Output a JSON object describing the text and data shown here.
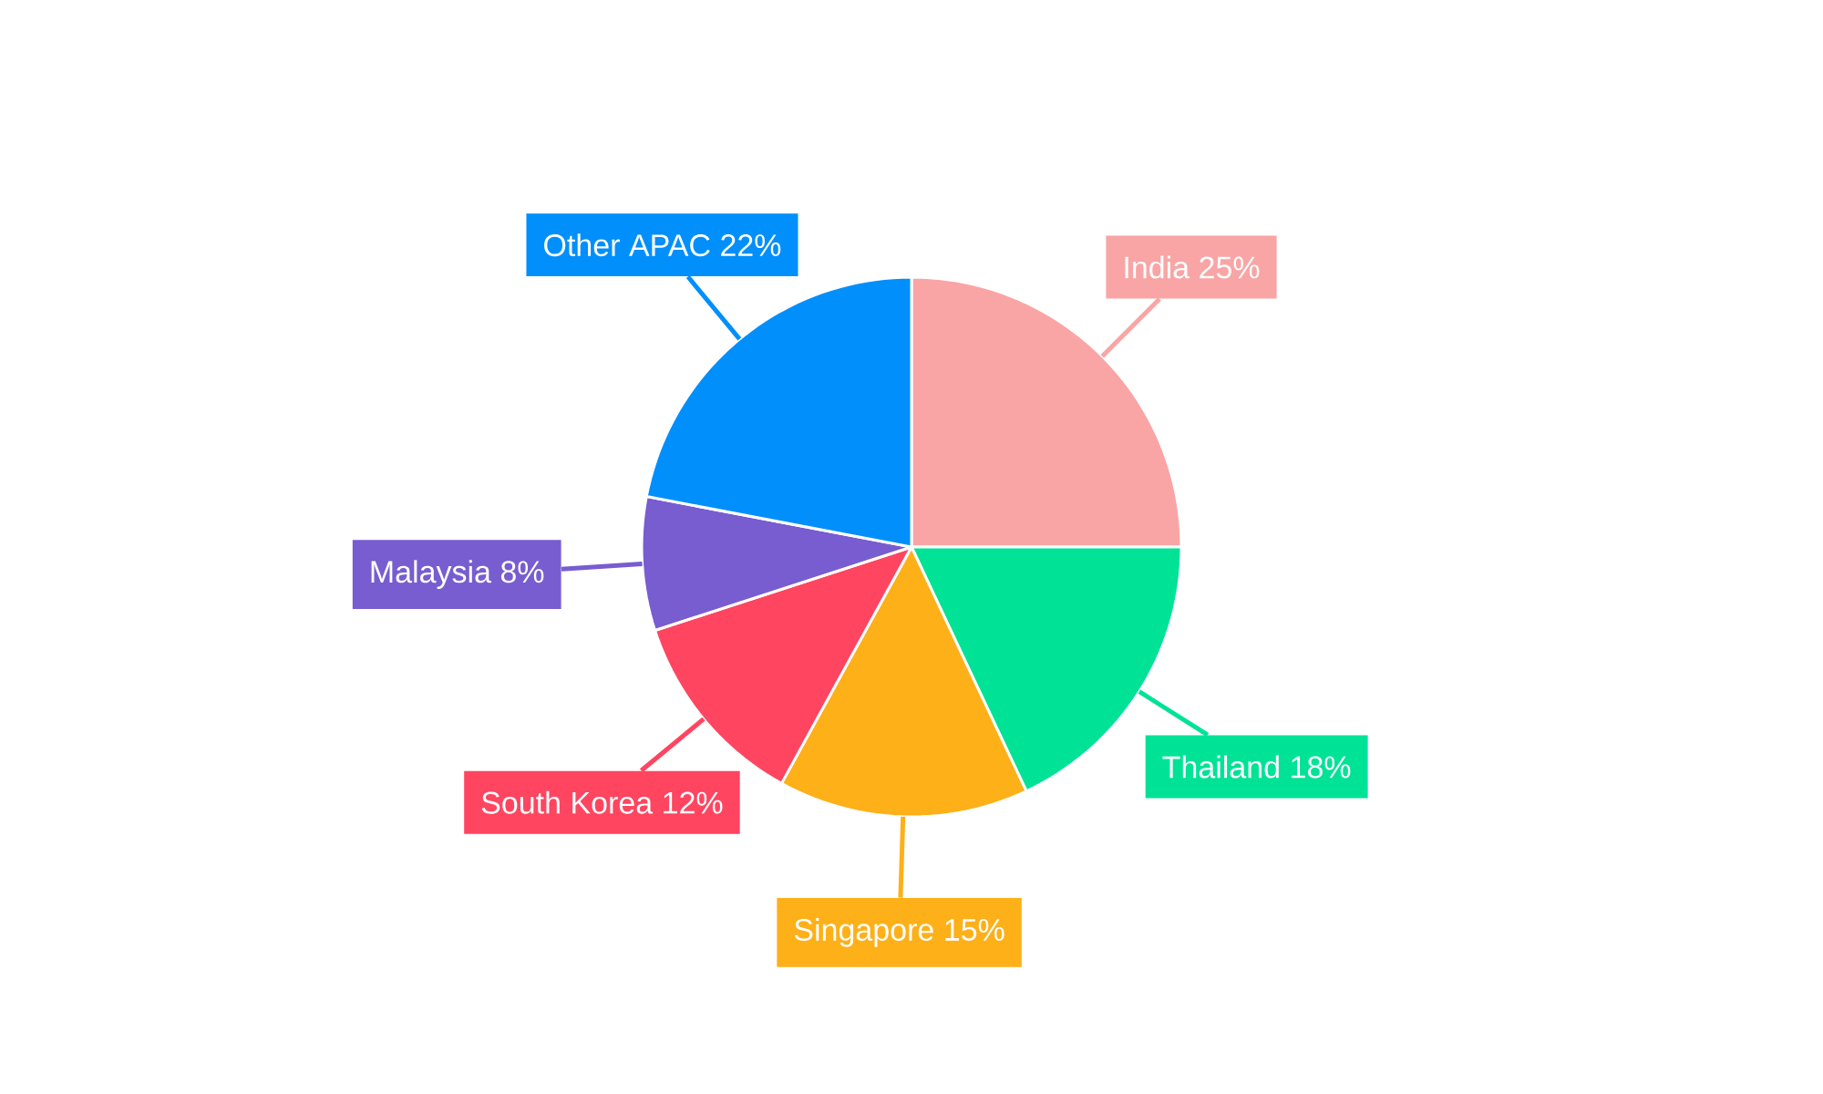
{
  "chart_data": {
    "type": "pie",
    "categories": [
      "India",
      "Thailand",
      "Singapore",
      "South Korea",
      "Malaysia",
      "Other APAC"
    ],
    "values": [
      25,
      18,
      15,
      12,
      8,
      22
    ],
    "colors": [
      "#f9a5a5",
      "#00e396",
      "#feb019",
      "#ff4560",
      "#775dd0",
      "#008ffb"
    ],
    "value_labels": [
      "25%",
      "18%",
      "15%",
      "12%",
      "8%",
      "22%"
    ]
  }
}
